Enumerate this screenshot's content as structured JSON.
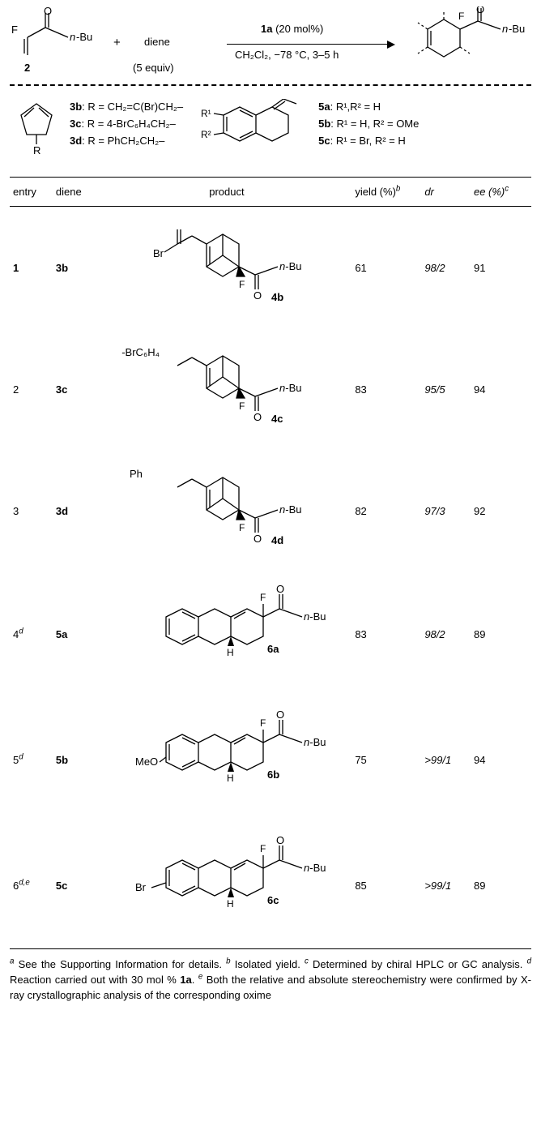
{
  "scheme": {
    "reactant_label": "2",
    "reactant_group": "n-Bu",
    "plus": "+",
    "diene_word": "diene",
    "equiv": "(5 equiv)",
    "cond_top": "1a (20 mol%)",
    "cond_bot_solv": "CH₂Cl₂, −78 °C, 3–5 h",
    "product_group": "n-Bu"
  },
  "mid": {
    "cyclopent_sub": "R",
    "left": [
      {
        "bold": "3b",
        "rest": ": R = CH₂=C(Br)CH₂–"
      },
      {
        "bold": "3c",
        "rest": ": R = 4-BrC₆H₄CH₂–"
      },
      {
        "bold": "3d",
        "rest": ": R = PhCH₂CH₂–"
      }
    ],
    "aryl_R1": "R¹",
    "aryl_R2": "R²",
    "right": [
      {
        "bold": "5a",
        "rest": ": R¹,R² = H"
      },
      {
        "bold": "5b",
        "rest": ": R¹ = H, R² = OMe"
      },
      {
        "bold": "5c",
        "rest": ": R¹ = Br, R² = H"
      }
    ]
  },
  "headers": {
    "entry": "entry",
    "diene": "diene",
    "product": "product",
    "yield": "yield (%)",
    "yield_sup": "b",
    "dr": "dr",
    "ee": "ee (%)",
    "ee_sup": "c"
  },
  "rows": [
    {
      "entry": "1",
      "entry_bold": true,
      "diene": "3b",
      "prodlabel": "4b",
      "yield": "61",
      "dr": "98/2",
      "ee": "91",
      "substituent": "Br",
      "sub_left": "",
      "poly": false
    },
    {
      "entry": "2",
      "entry_bold": false,
      "diene": "3c",
      "prodlabel": "4c",
      "yield": "83",
      "dr": "95/5",
      "ee": "94",
      "substituent": "4-BrC₆H₄",
      "sub_left": "",
      "poly": false
    },
    {
      "entry": "3",
      "entry_bold": false,
      "diene": "3d",
      "prodlabel": "4d",
      "yield": "82",
      "dr": "97/3",
      "ee": "92",
      "substituent": "Ph",
      "sub_left": "",
      "poly": false
    },
    {
      "entry": "4",
      "entry_sup": "d",
      "entry_bold": false,
      "diene": "5a",
      "prodlabel": "6a",
      "yield": "83",
      "dr": "98/2",
      "ee": "89",
      "substituent": "",
      "sub_left": "",
      "poly": true
    },
    {
      "entry": "5",
      "entry_sup": "d",
      "entry_bold": false,
      "diene": "5b",
      "prodlabel": "6b",
      "yield": "75",
      "dr": ">99/1",
      "ee": "94",
      "substituent": "",
      "sub_left": "MeO",
      "poly": true
    },
    {
      "entry": "6",
      "entry_sup": "d,e",
      "entry_bold": false,
      "diene": "5c",
      "prodlabel": "6c",
      "yield": "85",
      "dr": ">99/1",
      "ee": "89",
      "substituent": "",
      "sub_left": "Br",
      "poly": true
    }
  ],
  "footnotes": "ᵃ See the Supporting Information for details. ᵇ Isolated yield. ᶜ Determined by chiral HPLC or GC analysis. ᵈ Reaction carried out with 30 mol % 1a. ᵉ Both the relative and absolute stereochemistry were confirmed by X-ray crystallographic analysis of the corresponding oxime",
  "style": {
    "text_color": "#000000",
    "bg": "#ffffff",
    "stroke": "#000000",
    "base_fontsize": 13
  }
}
